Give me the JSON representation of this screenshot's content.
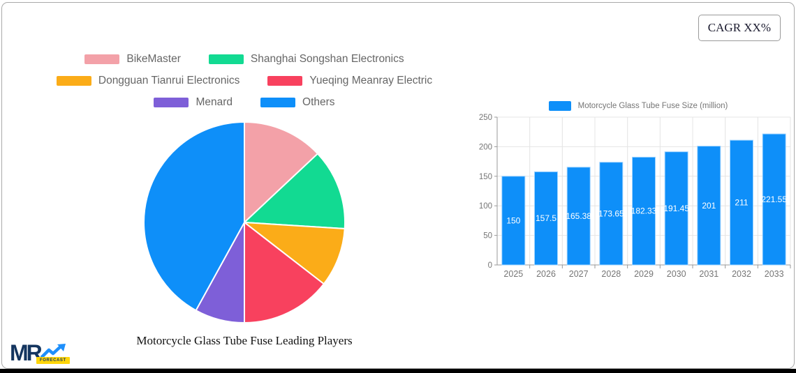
{
  "cagr_badge": "CAGR XX%",
  "logo": {
    "mr": "MR",
    "forecast": "FORECAST"
  },
  "colors": {
    "bar_blue": "#0e8ff9",
    "axis_gray": "#999999",
    "grid_gray": "#e4e4e4",
    "tick_label_gray": "#757575",
    "legend_text_gray": "#666666"
  },
  "chart_data": [
    {
      "type": "pie",
      "title": "Motorcycle Glass Tube Fuse Leading Players",
      "legend_position": "top",
      "direction": "clockwise",
      "start_angle": "12-oclock",
      "labels": [
        "BikeMaster",
        "Shanghai Songshan Electronics",
        "Dongguan Tianrui Electronics",
        "Yueqing Meanray Electric",
        "Menard",
        "Others"
      ],
      "values_percent": [
        13,
        13,
        9.5,
        14.5,
        8,
        42
      ],
      "colors": [
        "#f3a1a8",
        "#12da92",
        "#fbac18",
        "#f8415e",
        "#7e5fd8",
        "#0e8ff9"
      ]
    },
    {
      "type": "bar",
      "legend": "Motorcycle Glass Tube Fuse Size (million)",
      "categories": [
        "2025",
        "2026",
        "2027",
        "2028",
        "2029",
        "2030",
        "2031",
        "2032",
        "2033"
      ],
      "values": [
        150,
        157.5,
        165.38,
        173.65,
        182.33,
        191.45,
        201,
        211,
        221.55
      ],
      "ylim": [
        0,
        250
      ],
      "ytick_step": 50,
      "bar_color": "#0e8ff9",
      "grid": true,
      "value_label_position": "inside-middle",
      "value_label_color": "#ffffff"
    }
  ]
}
